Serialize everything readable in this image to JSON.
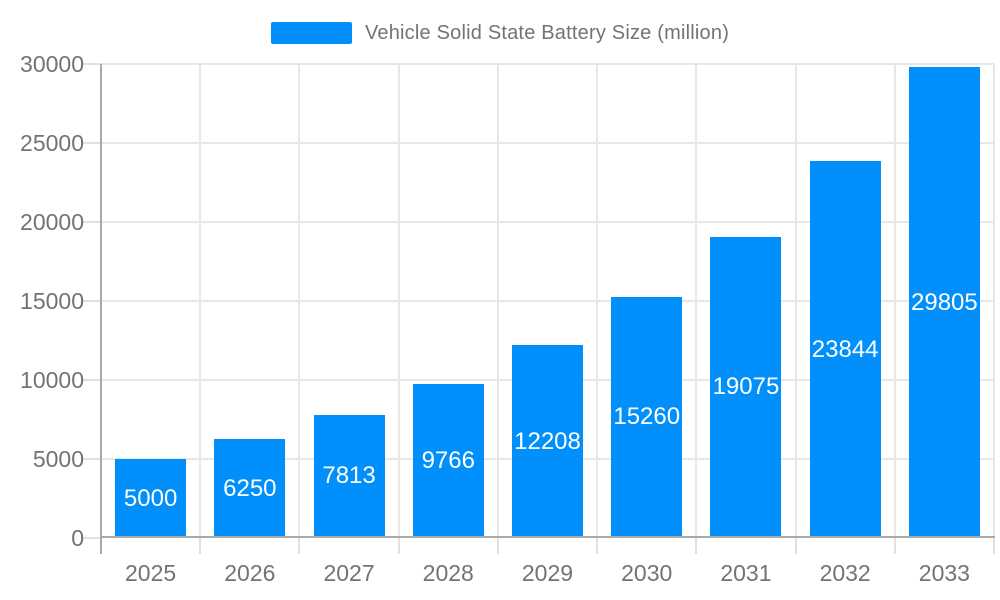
{
  "legend": {
    "label": "Vehicle Solid State Battery Size (million)"
  },
  "chart_data": {
    "type": "bar",
    "title": "Vehicle Solid State Battery Size (million)",
    "categories": [
      "2025",
      "2026",
      "2027",
      "2028",
      "2029",
      "2030",
      "2031",
      "2032",
      "2033"
    ],
    "values": [
      5000,
      6250,
      7813,
      9766,
      12208,
      15260,
      19075,
      23844,
      29805
    ],
    "series": [
      {
        "name": "Vehicle Solid State Battery Size (million)",
        "values": [
          5000,
          6250,
          7813,
          9766,
          12208,
          15260,
          19075,
          23844,
          29805
        ]
      }
    ],
    "xlabel": "",
    "ylabel": "",
    "ylim": [
      0,
      30000
    ],
    "yticks": [
      0,
      5000,
      10000,
      15000,
      20000,
      25000,
      30000
    ],
    "grid": true,
    "bar_labels": true,
    "legend_position": "top"
  },
  "colors": {
    "bar": "#008FFB",
    "bar_label_text": "#ffffff",
    "axis_text": "#737373",
    "gridline": "#e7e7e7",
    "tick": "#e0e0e0",
    "axis_line": "#a9a9a9",
    "background": "#ffffff"
  }
}
